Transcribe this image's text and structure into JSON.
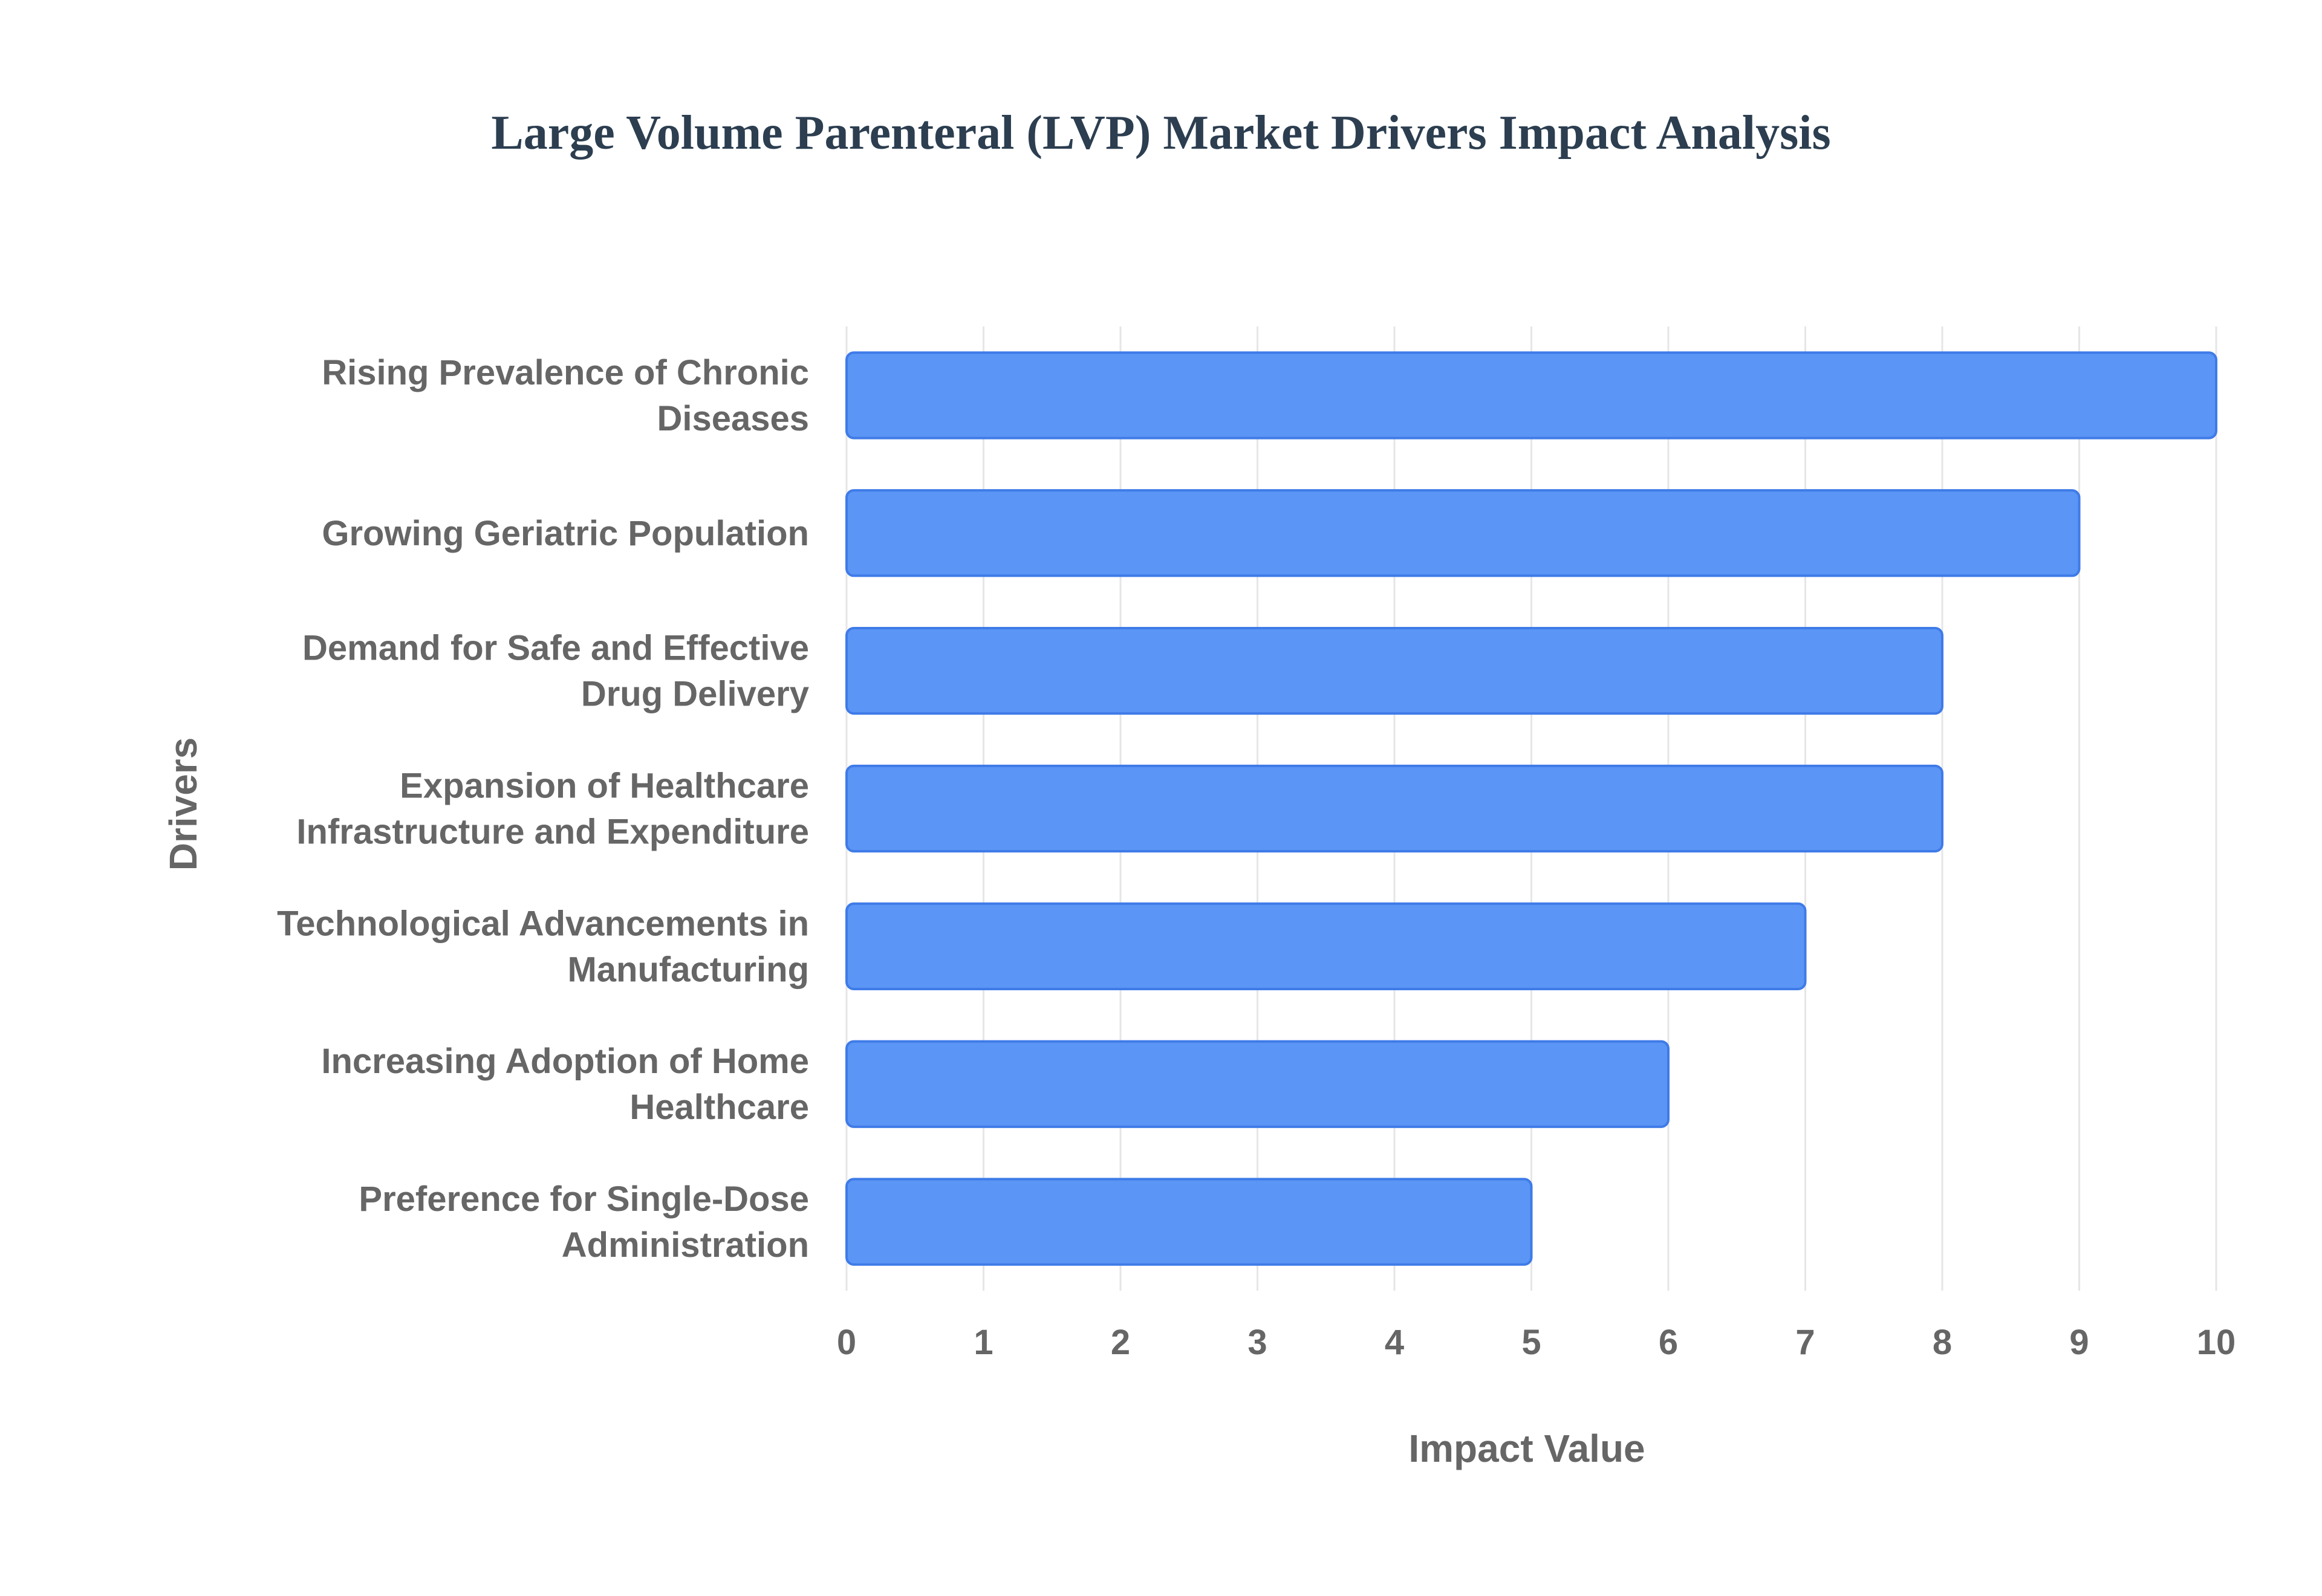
{
  "chart_data": {
    "type": "bar",
    "orientation": "horizontal",
    "title": "Large Volume Parenteral (LVP) Market Drivers Impact Analysis",
    "xlabel": "Impact Value",
    "ylabel": "Drivers",
    "categories": [
      [
        "Rising Prevalence of Chronic",
        "Diseases"
      ],
      [
        "Growing Geriatric Population"
      ],
      [
        "Demand for Safe and Effective",
        "Drug Delivery"
      ],
      [
        "Expansion of Healthcare",
        "Infrastructure and Expenditure"
      ],
      [
        "Technological Advancements in",
        "Manufacturing"
      ],
      [
        "Increasing Adoption of Home",
        "Healthcare"
      ],
      [
        "Preference for Single-Dose",
        "Administration"
      ]
    ],
    "values": [
      10,
      9,
      8,
      8,
      7,
      6,
      5
    ],
    "xlim": [
      0,
      10
    ],
    "xticks": [
      "0",
      "1",
      "2",
      "3",
      "4",
      "5",
      "6",
      "7",
      "8",
      "9",
      "10"
    ],
    "grid": true,
    "legend": "none",
    "colors": {
      "bar_fill": "#5b95f5",
      "bar_stroke": "#3f7be8",
      "grid": "#e6e6e6",
      "text": "#666666",
      "title": "#2c3e50"
    }
  }
}
